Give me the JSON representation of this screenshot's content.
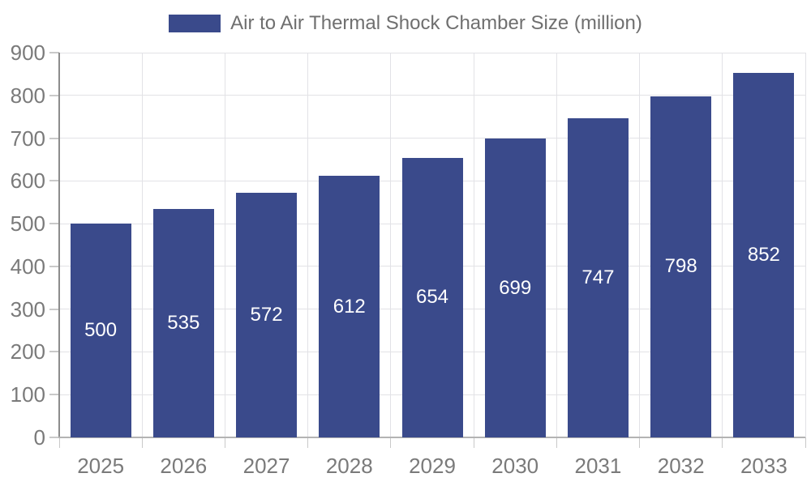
{
  "chart_data": {
    "type": "bar",
    "title": "Air to Air Thermal Shock Chamber Size (million)",
    "categories": [
      "2025",
      "2026",
      "2027",
      "2028",
      "2029",
      "2030",
      "2031",
      "2032",
      "2033"
    ],
    "values": [
      500,
      535,
      572,
      612,
      654,
      699,
      747,
      798,
      852
    ],
    "series": [
      {
        "name": "Air to Air Thermal Shock Chamber Size (million)",
        "values": [
          500,
          535,
          572,
          612,
          654,
          699,
          747,
          798,
          852
        ]
      }
    ],
    "xlabel": "",
    "ylabel": "",
    "ylim": [
      0,
      900
    ],
    "yticks": [
      0,
      100,
      200,
      300,
      400,
      500,
      600,
      700,
      800,
      900
    ],
    "grid": true,
    "legend_position": "top-center",
    "value_label_position": "inside-center"
  },
  "legend": {
    "label": "Air to Air Thermal Shock Chamber Size (million)",
    "swatch_icon": "legend-swatch"
  },
  "colors": {
    "bar": "#3A4A8B",
    "value_label": "#FFFFFF",
    "grid": "#E2E2E6",
    "axis_y": "#8C8C8C",
    "axis_x": "#B3B3B3",
    "tick": "#C9C9C9",
    "axis_label_text": "#7A7A7A",
    "title_text": "#6F6F6F",
    "background": "#FFFFFF"
  }
}
